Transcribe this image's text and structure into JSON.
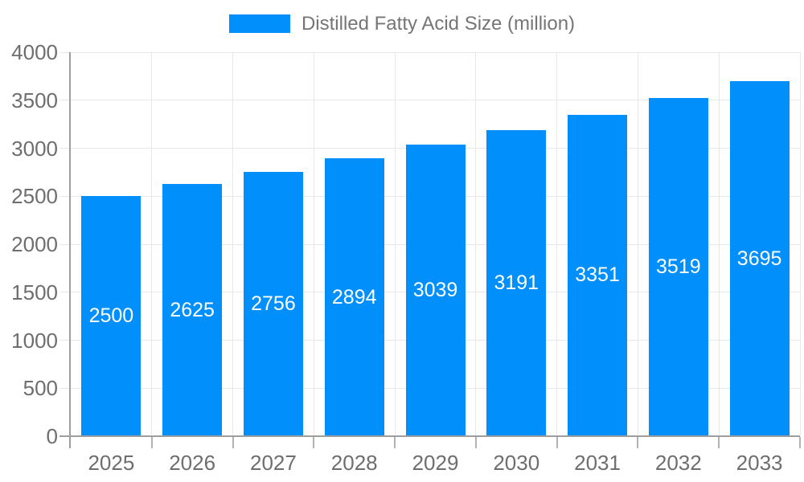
{
  "chart_data": {
    "type": "bar",
    "title": "Distilled Fatty Acid Size (million)",
    "categories": [
      "2025",
      "2026",
      "2027",
      "2028",
      "2029",
      "2030",
      "2031",
      "2032",
      "2033"
    ],
    "values": [
      2500,
      2625,
      2756,
      2894,
      3039,
      3191,
      3351,
      3519,
      3695
    ],
    "yticks": [
      0,
      500,
      1000,
      1500,
      2000,
      2500,
      3000,
      3500,
      4000
    ],
    "ylim": [
      0,
      4000
    ],
    "xlabel": "",
    "ylabel": "",
    "grid": true,
    "legend_position": "top",
    "colors": {
      "bar": "#008ffb",
      "bar_label": "#ffffff",
      "axis_line": "#9e9e9e",
      "grid_line": "#e8e8e8",
      "tick_mark": "#b3b3b3",
      "tick_text": "#6e6e6e",
      "legend_text": "#757575",
      "background": "#ffffff"
    }
  }
}
